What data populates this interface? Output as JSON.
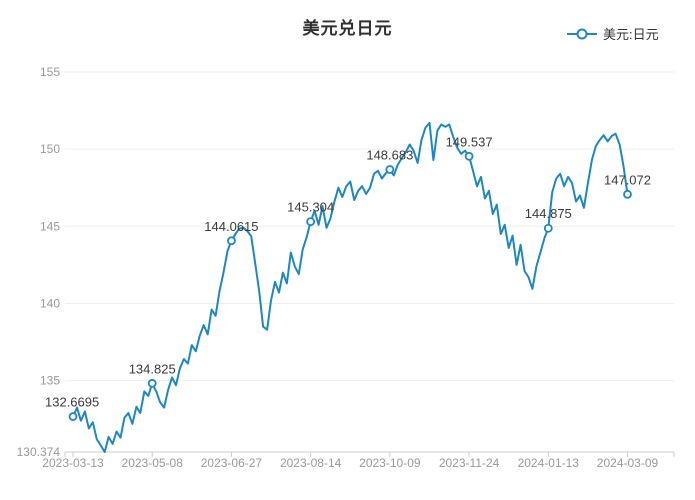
{
  "header": {
    "title": "美元兑日元"
  },
  "legend": {
    "items": [
      {
        "label": "美元:日元",
        "marker": "line-circle-icon"
      }
    ],
    "position": "top-right"
  },
  "colors": {
    "line": "#1e87c3",
    "marker_fill": "#ffffff",
    "grid": "#eeeeee",
    "axis": "#cccccc",
    "tick_label": "#999999",
    "annotation_text": "#3a3a3a",
    "title_text": "#2f2f2f",
    "background": "#ffffff"
  },
  "chart_data": {
    "type": "line",
    "title": "美元兑日元",
    "legend": [
      "美元:日元"
    ],
    "legend_position": "top-right",
    "grid": true,
    "xlabel": "",
    "ylabel": "",
    "ylim": [
      130.374,
      155
    ],
    "y_ticks": [
      135,
      140,
      145,
      150,
      155
    ],
    "y_min_label": "130.374",
    "x_tick_labels": [
      "2023-03-13",
      "2023-05-08",
      "2023-06-27",
      "2023-08-14",
      "2023-10-09",
      "2023-11-24",
      "2024-01-13",
      "2024-03-09"
    ],
    "annotations": [
      {
        "index": 0,
        "label": "132.6695",
        "date": "2023-03-13"
      },
      {
        "index": 20,
        "label": "134.825",
        "date": "2023-05-08"
      },
      {
        "index": 40,
        "label": "144.0615",
        "date": "2023-06-27"
      },
      {
        "index": 60,
        "label": "145.304",
        "date": "2023-08-14"
      },
      {
        "index": 80,
        "label": "148.683",
        "date": "2023-10-09"
      },
      {
        "index": 100,
        "label": "149.537",
        "date": "2023-11-24"
      },
      {
        "index": 120,
        "label": "144.875",
        "date": "2024-01-13"
      },
      {
        "index": 140,
        "label": "147.072",
        "date": "2024-03-09"
      }
    ],
    "values": [
      132.6695,
      133.25,
      132.4,
      133.0,
      131.9,
      132.3,
      131.2,
      130.8,
      130.374,
      131.35,
      130.9,
      131.7,
      131.3,
      132.6,
      132.9,
      132.2,
      133.3,
      132.9,
      134.3,
      134.0,
      134.825,
      134.3,
      133.6,
      133.25,
      134.4,
      135.2,
      134.7,
      135.8,
      136.4,
      136.1,
      137.3,
      136.9,
      137.9,
      138.6,
      138.0,
      139.6,
      139.2,
      140.8,
      142.0,
      143.4,
      144.0615,
      144.5,
      144.85,
      144.9,
      144.7,
      144.35,
      142.6,
      140.8,
      138.5,
      138.3,
      140.2,
      141.4,
      140.7,
      142.0,
      141.3,
      143.3,
      142.4,
      141.9,
      143.5,
      144.3,
      145.304,
      146.0,
      145.1,
      146.3,
      144.9,
      145.5,
      146.6,
      147.5,
      146.9,
      147.6,
      147.9,
      146.7,
      147.3,
      147.6,
      147.1,
      147.5,
      148.4,
      148.6,
      148.1,
      148.45,
      148.683,
      148.3,
      149.0,
      149.4,
      149.8,
      150.3,
      149.9,
      149.1,
      150.6,
      151.4,
      151.7,
      149.3,
      151.2,
      151.6,
      151.45,
      151.6,
      150.8,
      150.1,
      149.7,
      149.9,
      149.537,
      148.6,
      147.6,
      148.2,
      146.8,
      147.3,
      145.8,
      146.4,
      144.5,
      145.1,
      143.6,
      144.4,
      142.5,
      143.8,
      142.1,
      141.7,
      140.95,
      142.4,
      143.3,
      144.2,
      144.875,
      147.2,
      148.1,
      148.4,
      147.6,
      148.2,
      147.8,
      146.6,
      147.0,
      146.2,
      147.8,
      149.3,
      150.2,
      150.6,
      150.9,
      150.5,
      150.85,
      151.0,
      150.3,
      148.9,
      147.072
    ]
  }
}
